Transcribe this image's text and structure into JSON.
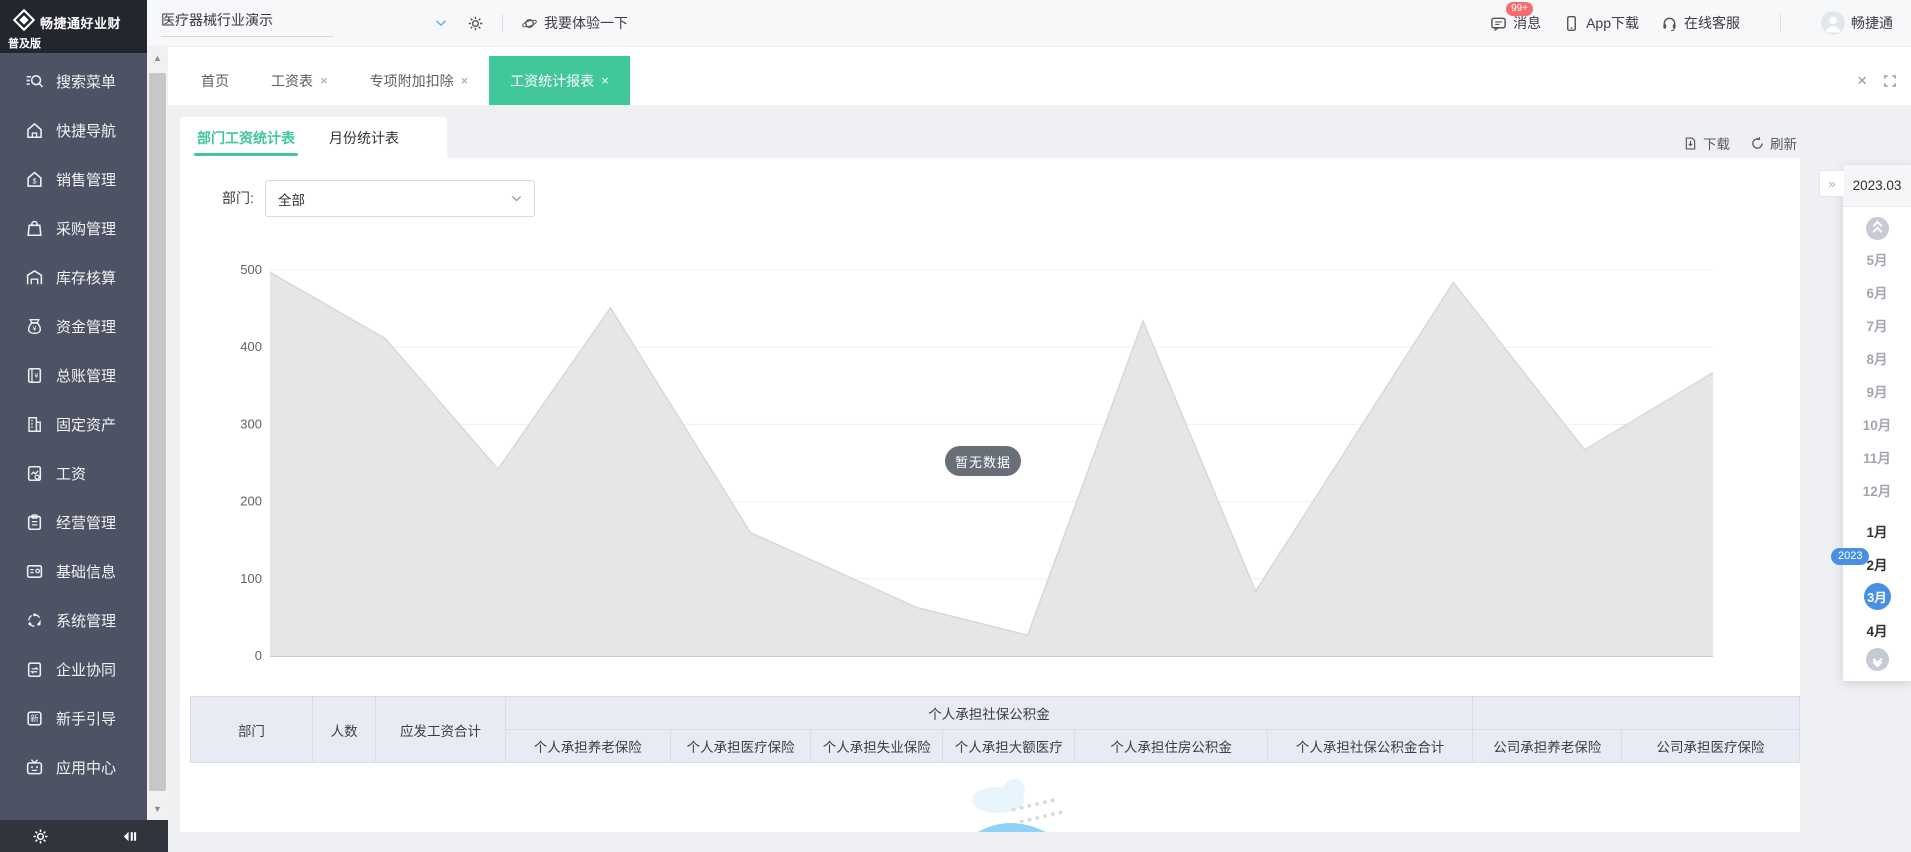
{
  "app": {
    "logo_title": "畅捷通好业财",
    "logo_subtitle": "普及版"
  },
  "topbar": {
    "org_select": "医疗器械行业演示",
    "experience": "我要体验一下",
    "messages": "消息",
    "messages_badge": "99+",
    "app_download": "App下载",
    "online_service": "在线客服",
    "username": "畅捷通"
  },
  "sidebar": {
    "items": [
      {
        "id": "search-menu",
        "icon": "search-menu",
        "label": "搜索菜单"
      },
      {
        "id": "quick-nav",
        "icon": "quick-nav",
        "label": "快捷导航"
      },
      {
        "id": "sales",
        "icon": "sales",
        "label": "销售管理"
      },
      {
        "id": "purchase",
        "icon": "purchase",
        "label": "采购管理"
      },
      {
        "id": "inventory",
        "icon": "inventory",
        "label": "库存核算"
      },
      {
        "id": "funds",
        "icon": "funds",
        "label": "资金管理"
      },
      {
        "id": "ledger",
        "icon": "ledger",
        "label": "总账管理"
      },
      {
        "id": "fixed-assets",
        "icon": "fixed-assets",
        "label": "固定资产"
      },
      {
        "id": "salary",
        "icon": "salary",
        "label": "工资"
      },
      {
        "id": "operations",
        "icon": "operations",
        "label": "经营管理"
      },
      {
        "id": "base-info",
        "icon": "base-info",
        "label": "基础信息"
      },
      {
        "id": "system",
        "icon": "system",
        "label": "系统管理"
      },
      {
        "id": "collaboration",
        "icon": "collaboration",
        "label": "企业协同"
      },
      {
        "id": "newbie-guide",
        "icon": "newbie-guide",
        "label": "新手引导"
      },
      {
        "id": "app-center",
        "icon": "app-center",
        "label": "应用中心"
      }
    ]
  },
  "tab_bar": {
    "tabs": [
      {
        "label": "首页",
        "closable": false,
        "active": false
      },
      {
        "label": "工资表",
        "closable": true,
        "active": false
      },
      {
        "label": "专项附加扣除",
        "closable": true,
        "active": false
      },
      {
        "label": "工资统计报表",
        "closable": true,
        "active": true
      }
    ]
  },
  "subtabs": {
    "tabs": [
      {
        "label": "部门工资统计表",
        "active": true
      },
      {
        "label": "月份统计表",
        "active": false
      }
    ]
  },
  "toolbar": {
    "download": "下载",
    "refresh": "刷新"
  },
  "filter": {
    "label": "部门:",
    "value": "全部"
  },
  "chart_data": {
    "type": "area",
    "title": "",
    "ylim": [
      0,
      500
    ],
    "yticks": [
      0,
      100,
      200,
      300,
      400,
      500
    ],
    "grid": true,
    "legend": false,
    "no_data_label": "暂无数据",
    "fill_color": "#E5E6E7",
    "series": [
      {
        "name": "placeholder-silhouette",
        "points": [
          [
            0.0,
            497
          ],
          [
            0.08,
            411
          ],
          [
            0.158,
            242
          ],
          [
            0.236,
            451
          ],
          [
            0.333,
            160
          ],
          [
            0.448,
            63
          ],
          [
            0.525,
            27
          ],
          [
            0.605,
            434
          ],
          [
            0.683,
            84
          ],
          [
            0.82,
            484
          ],
          [
            0.911,
            267
          ],
          [
            1.0,
            367
          ]
        ]
      }
    ]
  },
  "table": {
    "fixed_columns": [
      "部门",
      "人数",
      "应发工资合计"
    ],
    "groups": [
      {
        "label": "个人承担社保公积金",
        "columns": [
          "个人承担养老保险",
          "个人承担医疗保险",
          "个人承担失业保险",
          "个人承担大额医疗",
          "个人承担住房公积金",
          "个人承担社保公积金合计"
        ]
      },
      {
        "label": "",
        "columns": [
          "公司承担养老保险",
          "公司承担医疗保险"
        ]
      }
    ]
  },
  "month_panel": {
    "header": "2023.03",
    "year_badge": "2023",
    "months": [
      {
        "label": "5月",
        "state": "muted"
      },
      {
        "label": "6月",
        "state": "muted"
      },
      {
        "label": "7月",
        "state": "muted"
      },
      {
        "label": "8月",
        "state": "muted"
      },
      {
        "label": "9月",
        "state": "muted"
      },
      {
        "label": "10月",
        "state": "muted"
      },
      {
        "label": "11月",
        "state": "muted"
      },
      {
        "label": "12月",
        "state": "muted"
      },
      {
        "label": "1月",
        "state": "normal"
      },
      {
        "label": "2月",
        "state": "normal"
      },
      {
        "label": "3月",
        "state": "active"
      },
      {
        "label": "4月",
        "state": "normal"
      }
    ]
  },
  "colors": {
    "accent_green": "#41C79A",
    "sidebar_bg": "#4D5364",
    "active_blue": "#4A90E2",
    "badge_red": "#F56C6C",
    "table_header_bg": "#E9EBF4",
    "chart_fill": "#E5E6E7",
    "no_data_bg": "#5C636C"
  }
}
